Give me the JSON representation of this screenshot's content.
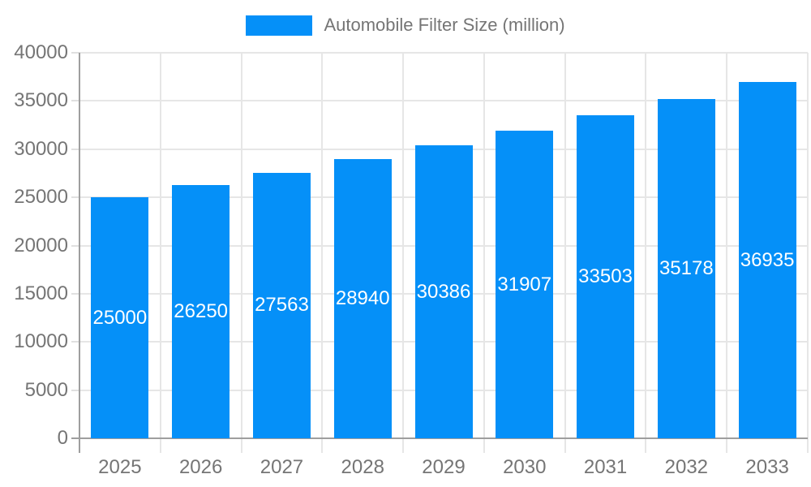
{
  "chart_data": {
    "type": "bar",
    "title": "Automobile Filter Size (million)",
    "categories": [
      "2025",
      "2026",
      "2027",
      "2028",
      "2029",
      "2030",
      "2031",
      "2032",
      "2033"
    ],
    "values": [
      25000,
      26250,
      27563,
      28940,
      30386,
      31907,
      33503,
      35178,
      36935
    ],
    "xlabel": "",
    "ylabel": "",
    "ylim": [
      0,
      40000
    ],
    "ytick_step": 5000,
    "ytick_labels": [
      "0",
      "5000",
      "10000",
      "15000",
      "20000",
      "25000",
      "30000",
      "35000",
      "40000"
    ],
    "legend_position": "top",
    "grid": true,
    "value_labels_shown": true,
    "colors": {
      "bar": "#0590F8",
      "bar_value_text": "#ffffff",
      "axis_text": "#757575",
      "legend_text": "#757575",
      "axis_line": "#9e9e9e",
      "grid_line": "#e6e6e6"
    }
  }
}
